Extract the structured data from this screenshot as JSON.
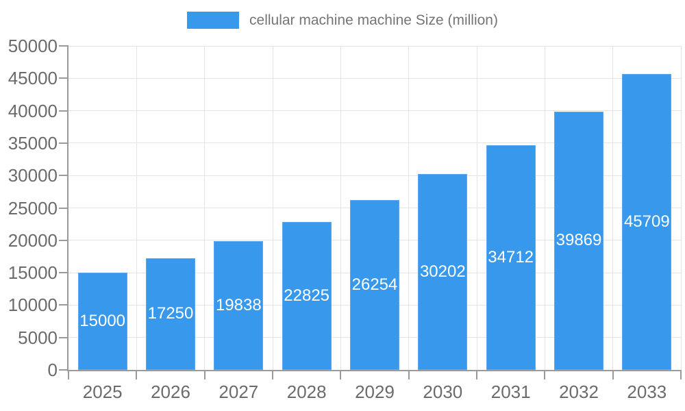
{
  "chart_data": {
    "type": "bar",
    "title": "",
    "legend": "cellular machine machine Size (million)",
    "categories": [
      "2025",
      "2026",
      "2027",
      "2028",
      "2029",
      "2030",
      "2031",
      "2032",
      "2033"
    ],
    "values": [
      15000,
      17250,
      19838,
      22825,
      26254,
      30202,
      34712,
      39869,
      45709
    ],
    "xlabel": "",
    "ylabel": "",
    "ylim": [
      0,
      50000
    ],
    "ytick_step": 5000,
    "grid": true,
    "legend_position": "top",
    "colors": {
      "bar": "#3899ec",
      "bar_border": "#5fa8ee",
      "value_label": "#ffffff",
      "grid": "#e4e4e4",
      "axis": "#9a9a9a",
      "tick_label": "#6b6b6b",
      "legend_text": "#757575"
    }
  }
}
